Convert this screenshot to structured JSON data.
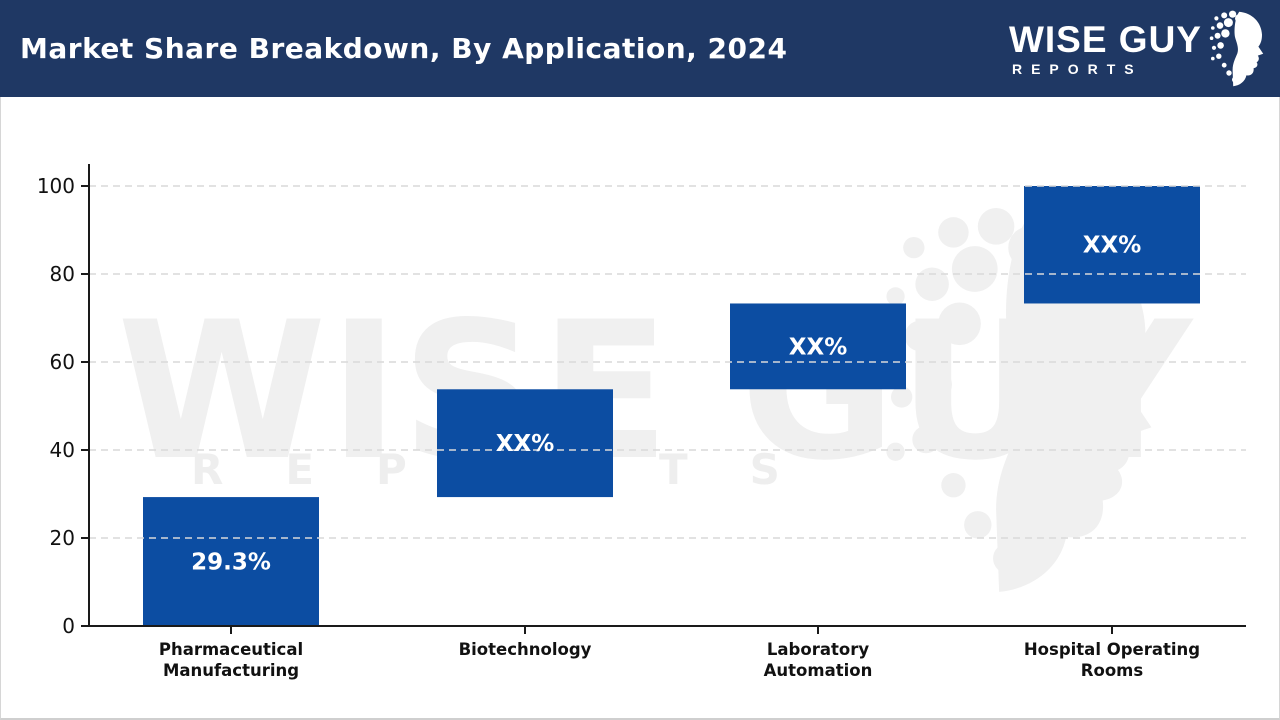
{
  "header": {
    "title": "Market Share Breakdown, By Application, 2024",
    "bg_color": "#1F3864",
    "logo": {
      "line1": "WISE GUY",
      "line2": "REPORTS"
    }
  },
  "watermark": {
    "line1": "WISE GUY",
    "line2": "REPORTS"
  },
  "chart_data": {
    "type": "bar",
    "subtype": "waterfall",
    "title": "Market Share Breakdown, By Application, 2024",
    "categories": [
      "Pharmaceutical Manufacturing",
      "Biotechnology",
      "Laboratory Automation",
      "Hospital Operating Rooms"
    ],
    "category_lines": [
      [
        "Pharmaceutical",
        "Manufacturing"
      ],
      [
        "Biotechnology"
      ],
      [
        "Laboratory",
        "Automation"
      ],
      [
        "Hospital Operating",
        "Rooms"
      ]
    ],
    "bars": [
      {
        "start": 0,
        "end": 29.3,
        "label": "29.3%"
      },
      {
        "start": 29.3,
        "end": 53.8,
        "label": "XX%"
      },
      {
        "start": 53.8,
        "end": 73.3,
        "label": "XX%"
      },
      {
        "start": 73.3,
        "end": 100,
        "label": "XX%"
      }
    ],
    "values": [
      29.3,
      24.5,
      19.5,
      26.7
    ],
    "cumulative": [
      29.3,
      53.8,
      73.3,
      100
    ],
    "bar_labels": [
      "29.3%",
      "XX%",
      "XX%",
      "XX%"
    ],
    "xlabel": "",
    "ylabel": "",
    "ylim": [
      0,
      100
    ],
    "yticks": [
      0,
      20,
      40,
      60,
      80,
      100
    ],
    "grid": "horizontal-dashed",
    "legend": "none",
    "bar_color": "#0C4DA2",
    "label_color": "#ffffff",
    "axis_color": "#1a1a1a",
    "grid_color": "#d9d9d9",
    "tick_label_color": "#111111"
  }
}
